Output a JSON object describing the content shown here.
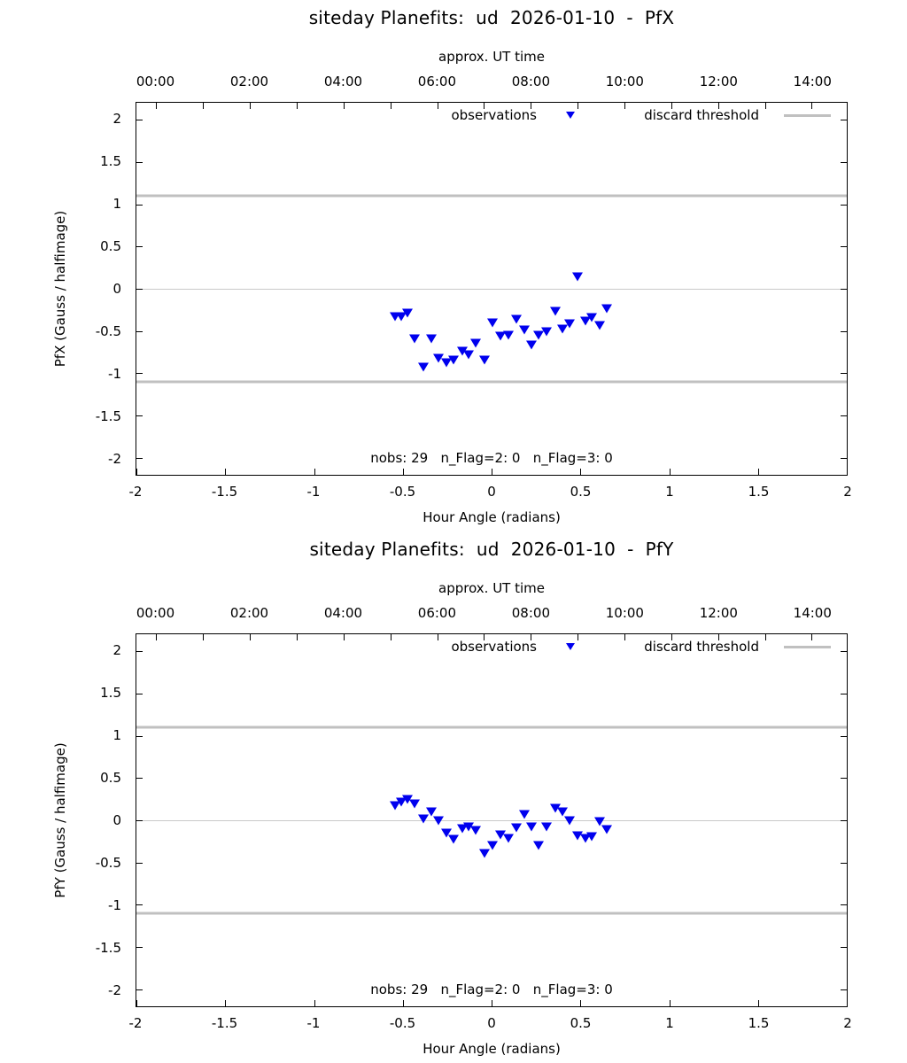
{
  "chart_data": [
    {
      "type": "scatter",
      "title": "siteday Planefits:  ud  2026-01-10  -  PfX",
      "xlabel": "Hour Angle (radians)",
      "x2label": "approx. UT time",
      "ylabel": "PfX (Gauss / halfimage)",
      "xlim": [
        -2,
        2
      ],
      "ylim": [
        -2.2,
        2.2
      ],
      "x_ticks": [
        -2,
        -1.5,
        -1,
        -0.5,
        0,
        0.5,
        1,
        1.5,
        2
      ],
      "y_ticks": [
        2,
        1.5,
        1,
        0.5,
        0,
        -0.5,
        -1,
        -1.5,
        -2
      ],
      "x2_ticks": {
        "labels": [
          "00:00",
          "02:00",
          "04:00",
          "06:00",
          "08:00",
          "10:00",
          "12:00",
          "14:00"
        ],
        "first_frac": 0.028,
        "hour_frac": 0.0659,
        "hours_per_label": 2,
        "total_hours": 15
      },
      "grid": false,
      "legend_position": "top-inside",
      "series_name": "observations",
      "threshold_name": "discard threshold",
      "threshold_value": 1.1,
      "marker_color": "#0000ee",
      "threshold_color": "#c0c0c0",
      "zero_line": true,
      "annotation": "nobs: 29   n_Flag=2: 0   n_Flag=3: 0",
      "x": [
        -0.545,
        -0.508,
        -0.473,
        -0.432,
        -0.383,
        -0.338,
        -0.298,
        -0.255,
        -0.213,
        -0.166,
        -0.13,
        -0.088,
        -0.041,
        0.007,
        0.048,
        0.094,
        0.138,
        0.183,
        0.226,
        0.263,
        0.31,
        0.36,
        0.4,
        0.441,
        0.485,
        0.527,
        0.566,
        0.608,
        0.65
      ],
      "y": [
        -0.34,
        -0.34,
        -0.29,
        -0.6,
        -0.93,
        -0.6,
        -0.83,
        -0.88,
        -0.85,
        -0.74,
        -0.79,
        -0.65,
        -0.85,
        -0.41,
        -0.57,
        -0.55,
        -0.37,
        -0.49,
        -0.67,
        -0.56,
        -0.51,
        -0.27,
        -0.48,
        -0.42,
        0.14,
        -0.39,
        -0.35,
        -0.44,
        -0.24
      ]
    },
    {
      "type": "scatter",
      "title": "siteday Planefits:  ud  2026-01-10  -  PfY",
      "xlabel": "Hour Angle (radians)",
      "x2label": "approx. UT time",
      "ylabel": "PfY (Gauss / halfimage)",
      "xlim": [
        -2,
        2
      ],
      "ylim": [
        -2.2,
        2.2
      ],
      "x_ticks": [
        -2,
        -1.5,
        -1,
        -0.5,
        0,
        0.5,
        1,
        1.5,
        2
      ],
      "y_ticks": [
        2,
        1.5,
        1,
        0.5,
        0,
        -0.5,
        -1,
        -1.5,
        -2
      ],
      "x2_ticks": {
        "labels": [
          "00:00",
          "02:00",
          "04:00",
          "06:00",
          "08:00",
          "10:00",
          "12:00",
          "14:00"
        ],
        "first_frac": 0.028,
        "hour_frac": 0.0659,
        "hours_per_label": 2,
        "total_hours": 15
      },
      "grid": false,
      "legend_position": "top-inside",
      "series_name": "observations",
      "threshold_name": "discard threshold",
      "threshold_value": 1.1,
      "marker_color": "#0000ee",
      "threshold_color": "#c0c0c0",
      "zero_line": true,
      "annotation": "nobs: 29   n_Flag=2: 0   n_Flag=3: 0",
      "x": [
        -0.545,
        -0.508,
        -0.473,
        -0.432,
        -0.383,
        -0.338,
        -0.298,
        -0.255,
        -0.213,
        -0.166,
        -0.13,
        -0.088,
        -0.041,
        0.007,
        0.048,
        0.094,
        0.138,
        0.183,
        0.226,
        0.263,
        0.31,
        0.36,
        0.4,
        0.441,
        0.485,
        0.527,
        0.566,
        0.608,
        0.65
      ],
      "y": [
        0.17,
        0.21,
        0.24,
        0.19,
        0.01,
        0.09,
        -0.01,
        -0.16,
        -0.23,
        -0.1,
        -0.08,
        -0.13,
        -0.4,
        -0.3,
        -0.18,
        -0.22,
        -0.09,
        0.06,
        -0.08,
        -0.3,
        -0.08,
        0.14,
        0.09,
        -0.01,
        -0.19,
        -0.22,
        -0.2,
        -0.02,
        -0.12
      ]
    }
  ]
}
